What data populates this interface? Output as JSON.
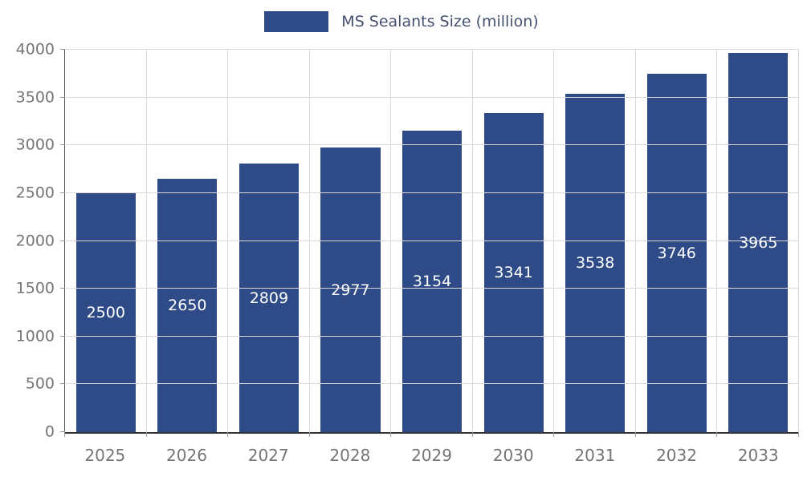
{
  "chart_data": {
    "type": "bar",
    "title": "MS Sealants Size (million)",
    "legend_label": "MS Sealants Size (million)",
    "legend_position": "top",
    "categories": [
      "2025",
      "2026",
      "2027",
      "2028",
      "2029",
      "2030",
      "2031",
      "2032",
      "2033"
    ],
    "values": [
      2500,
      2650,
      2809,
      2977,
      3154,
      3341,
      3538,
      3746,
      3965
    ],
    "xlabel": "",
    "ylabel": "",
    "ylim": [
      0,
      4000
    ],
    "yticks": [
      0,
      500,
      1000,
      1500,
      2000,
      2500,
      3000,
      3500,
      4000
    ],
    "grid": true,
    "bar_color": "#2e4a87",
    "value_label_color": "#ffffff",
    "axis_text_color": "#757575"
  }
}
